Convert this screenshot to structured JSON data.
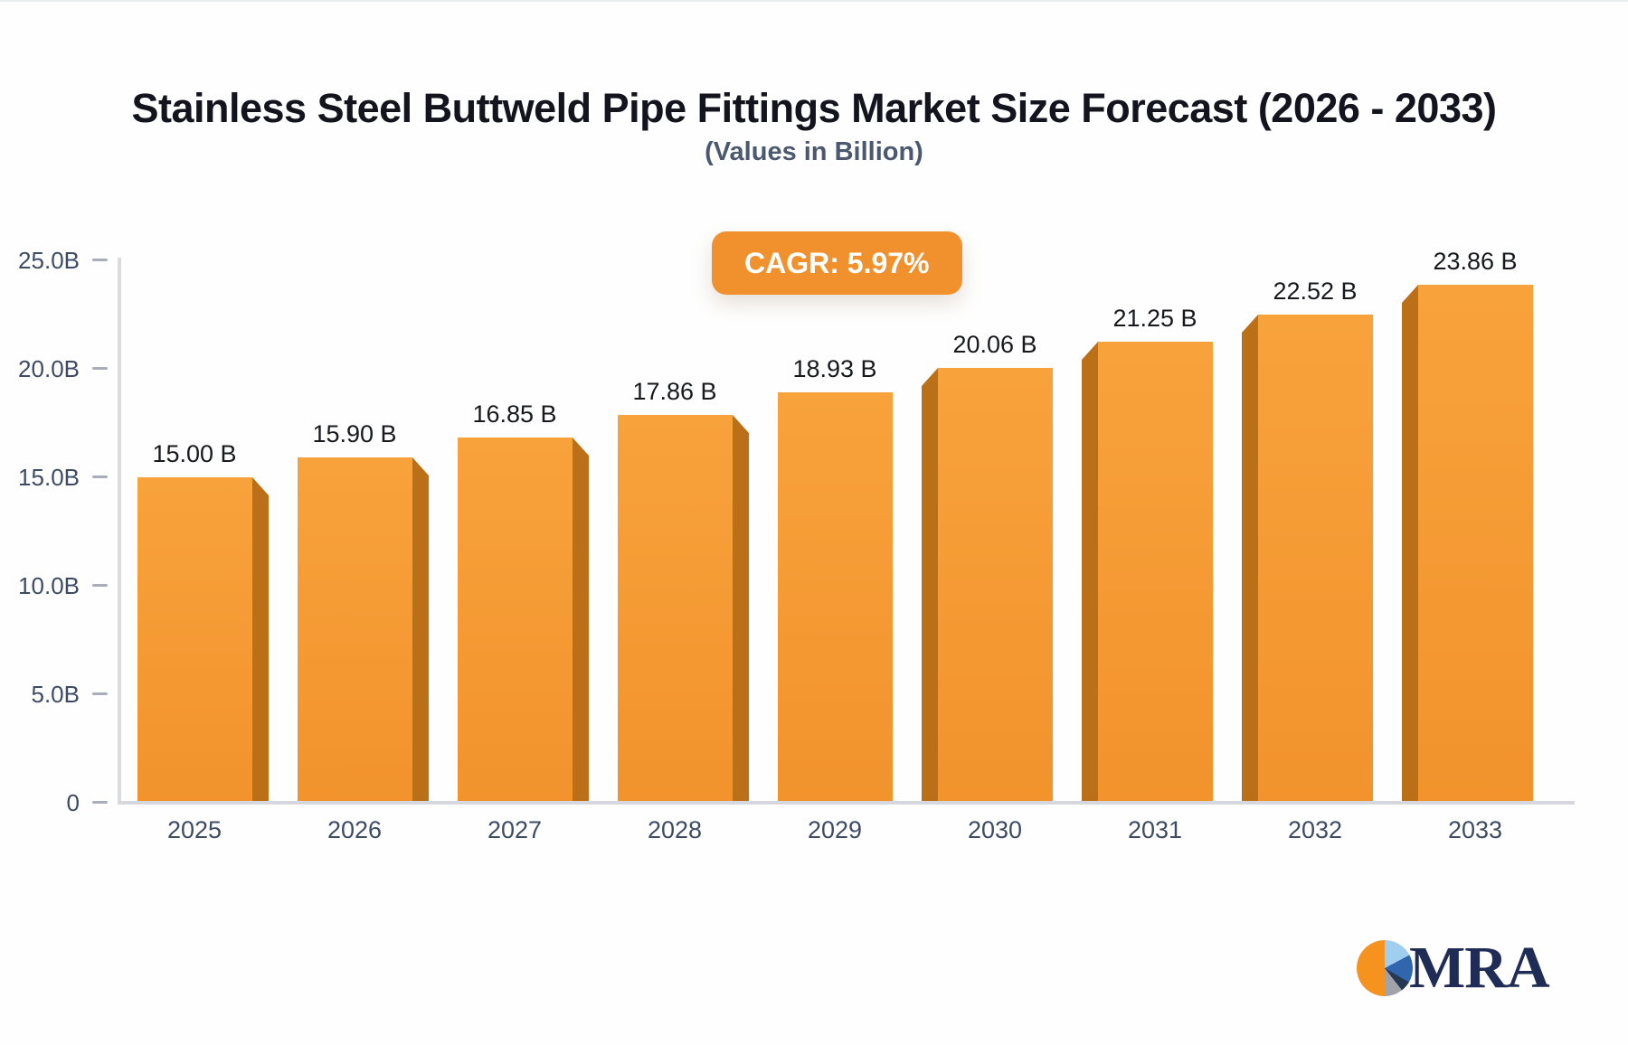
{
  "header": {
    "title": "Stainless Steel Buttweld Pipe Fittings Market Size Forecast (2026 - 2033)",
    "subtitle": "(Values in Billion)"
  },
  "badge": {
    "label": "CAGR: 5.97%",
    "color": "#f0912d"
  },
  "chart_data": {
    "type": "bar",
    "title": "Stainless Steel Buttweld Pipe Fittings Market Size Forecast (2026 - 2033)",
    "subtitle": "(Values in Billion)",
    "cagr": "CAGR: 5.97%",
    "categories": [
      "2025",
      "2026",
      "2027",
      "2028",
      "2029",
      "2030",
      "2031",
      "2032",
      "2033"
    ],
    "values": [
      15.0,
      15.9,
      16.85,
      17.86,
      18.93,
      20.06,
      21.25,
      22.52,
      23.86
    ],
    "value_labels": [
      "15.00 B",
      "15.90 B",
      "16.85 B",
      "17.86 B",
      "18.93 B",
      "20.06 B",
      "21.25 B",
      "22.52 B",
      "23.86 B"
    ],
    "xlabel": "",
    "ylabel": "",
    "ylim": [
      0,
      25
    ],
    "yticks": [
      {
        "value": 0,
        "label": "0"
      },
      {
        "value": 5,
        "label": "5.0B"
      },
      {
        "value": 10,
        "label": "10.0B"
      },
      {
        "value": 15,
        "label": "15.0B"
      },
      {
        "value": 20,
        "label": "20.0B"
      },
      {
        "value": 25,
        "label": "25.0B"
      }
    ],
    "grid": false,
    "legend": false,
    "bar_style": "3d-perspective-from-center",
    "colors": {
      "bar_face_top": "#f8a23c",
      "bar_face_bottom": "#f2932c",
      "bar_side": "#bb7018",
      "axis_line": "#d8dadf",
      "tick_label": "#3d4c63",
      "value_label": "#17191e"
    }
  },
  "logo": {
    "text": "MRA",
    "icon": "pie-chart-icon",
    "pie_colors": [
      "#f6921e",
      "#9fceef",
      "#2f66ae",
      "#a0a3aa",
      "#263852"
    ]
  }
}
